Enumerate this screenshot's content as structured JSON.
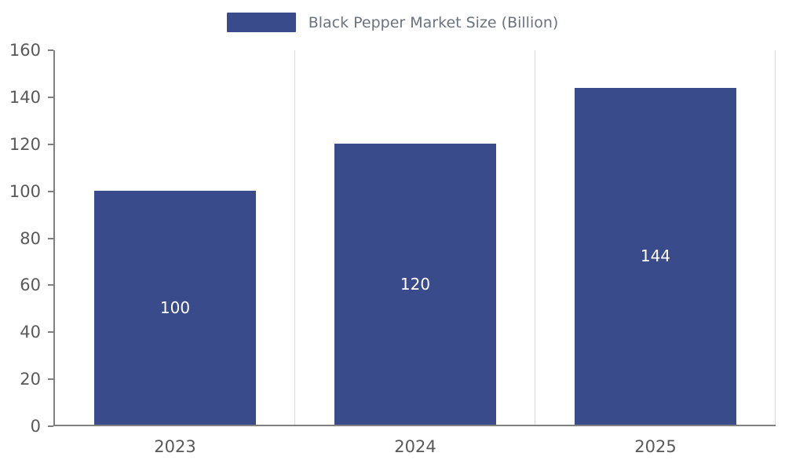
{
  "chart_data": {
    "type": "bar",
    "title": "Black Pepper Market Size (Billion)",
    "categories": [
      "2023",
      "2024",
      "2025"
    ],
    "values": [
      100,
      120,
      144
    ],
    "value_labels": [
      "100",
      "120",
      "144"
    ],
    "xlabel": "",
    "ylabel": "",
    "ylim": [
      0,
      160
    ],
    "ytick_step": 20,
    "ytick_labels": [
      "0",
      "20",
      "40",
      "60",
      "80",
      "100",
      "120",
      "140",
      "160"
    ],
    "legend": {
      "position": "top",
      "label": "Black Pepper Market Size (Billion)"
    },
    "grid": "vertical-category-separators",
    "colors": {
      "bar": "#3A4B8C",
      "axis": "#808080",
      "grid": "#d9d9d9",
      "tick_label": "#595959",
      "title": "#6b7280",
      "value_label": "#ffffff",
      "background": "#ffffff"
    }
  }
}
